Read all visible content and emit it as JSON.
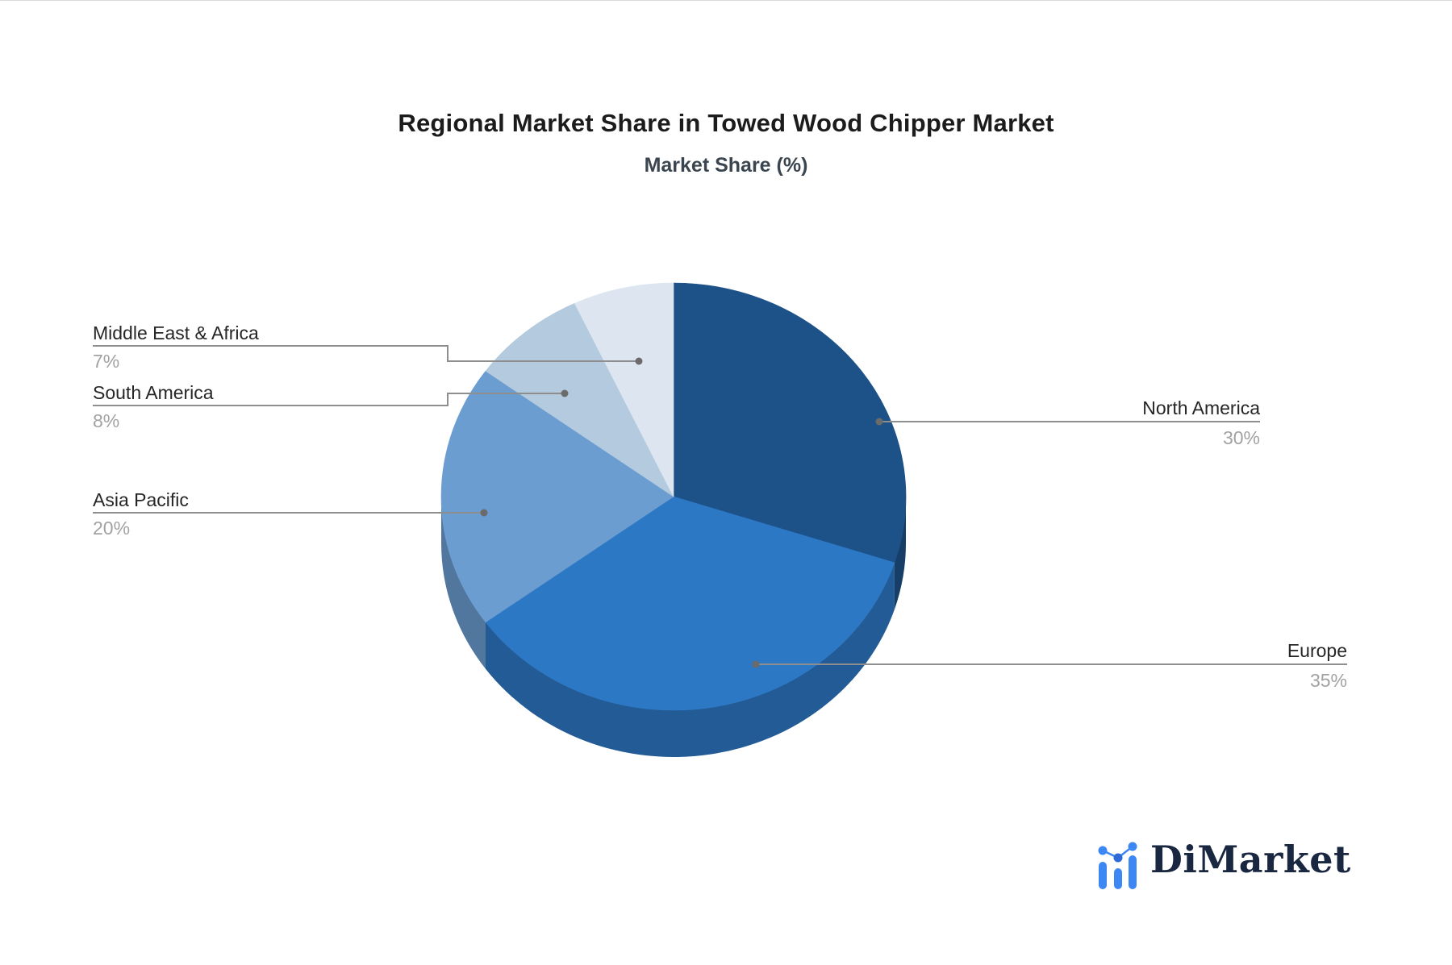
{
  "header": {
    "title": "Regional Market Share in Towed Wood Chipper Market",
    "subtitle": "Market Share (%)"
  },
  "chart_data": {
    "type": "pie",
    "style": "3d-pie",
    "title": "Regional Market Share in Towed Wood Chipper Market",
    "subtitle": "Market Share (%)",
    "unit": "%",
    "direction": "clockwise",
    "start_angle_deg": 0,
    "labels": [
      "North America",
      "Europe",
      "Asia Pacific",
      "South America",
      "Middle East & Africa"
    ],
    "values": [
      30,
      35,
      20,
      8,
      7
    ],
    "value_texts": [
      "30%",
      "35%",
      "20%",
      "8%",
      "7%"
    ],
    "colors": [
      "#1d5288",
      "#2d78c4",
      "#6c9dd1",
      "#b3cadf",
      "#dde6f0"
    ],
    "legend_position": "callout-labels"
  },
  "callouts": [
    {
      "label": "North America",
      "value_text": "30%"
    },
    {
      "label": "Europe",
      "value_text": "35%"
    },
    {
      "label": "Asia Pacific",
      "value_text": "20%"
    },
    {
      "label": "South America",
      "value_text": "8%"
    },
    {
      "label": "Middle East & Africa",
      "value_text": "7%"
    }
  ],
  "branding": {
    "logo_text": "DiMarket",
    "logo_mark": "bar-chart-with-trend-dots-icon",
    "logo_text_color": "#1a2740",
    "logo_bar_color": "#3d87f5",
    "logo_mid_dot_color": "#2e6bd8"
  },
  "colors": {
    "background": "#ffffff",
    "title_text": "#1c1c1c",
    "subtitle_text": "#3a454f",
    "label_text": "#262626",
    "percent_text": "#a2a2a2",
    "leader_line": "#8e8e8e",
    "leader_dot": "#6b6b6b"
  }
}
